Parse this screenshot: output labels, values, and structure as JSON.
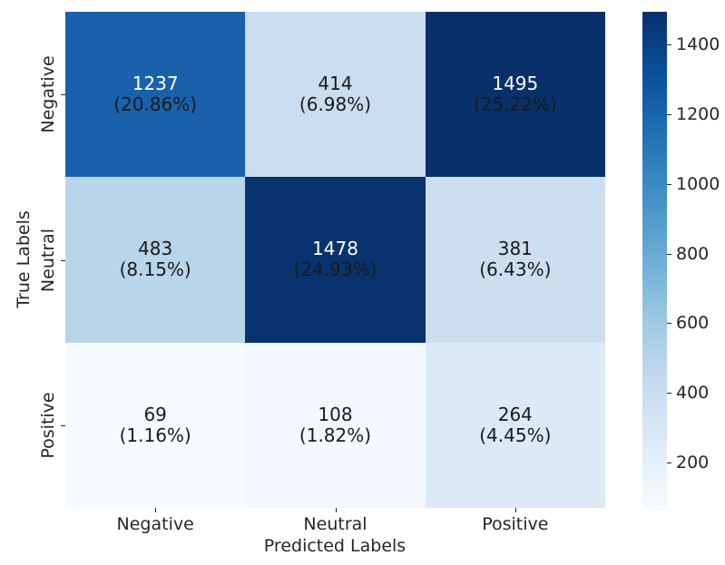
{
  "figure": {
    "background": "#ffffff",
    "text_color": "#262626"
  },
  "chart_data": {
    "type": "heatmap",
    "title": "",
    "xlabel": "Predicted Labels",
    "ylabel": "True Labels",
    "x_categories": [
      "Negative",
      "Neutral",
      "Positive"
    ],
    "y_categories": [
      "Negative",
      "Neutral",
      "Positive"
    ],
    "matrix_counts": [
      [
        1237,
        414,
        1495
      ],
      [
        483,
        1478,
        381
      ],
      [
        69,
        108,
        264
      ]
    ],
    "matrix_percent_labels": [
      [
        "(20.86%)",
        "(6.98%)",
        "(25.22%)"
      ],
      [
        "(8.15%)",
        "(24.93%)",
        "(6.43%)"
      ],
      [
        "(1.16%)",
        "(1.82%)",
        "(4.45%)"
      ]
    ],
    "cell_colors": [
      [
        "#1a61ac",
        "#c9ddf0",
        "#08306b"
      ],
      [
        "#b8d5ea",
        "#08336f",
        "#ccdff1"
      ],
      [
        "#f7fbff",
        "#f2f8fd",
        "#dce9f6"
      ]
    ],
    "count_text_colors": [
      [
        "#ffffff",
        "#1a1a1a",
        "#ffffff"
      ],
      [
        "#1a1a1a",
        "#ffffff",
        "#1a1a1a"
      ],
      [
        "#1a1a1a",
        "#1a1a1a",
        "#1a1a1a"
      ]
    ],
    "percent_text_color": "#1a1a1a",
    "colorbar": {
      "vmin": 69,
      "vmax": 1495,
      "tick_values": [
        200,
        400,
        600,
        800,
        1000,
        1200,
        1400
      ],
      "gradient_stops": [
        "#f7fbff",
        "#deebf7",
        "#c6dbef",
        "#9ecae1",
        "#6baed6",
        "#4292c6",
        "#2171b5",
        "#08519c",
        "#08306b"
      ]
    },
    "legend": null,
    "grid": false
  }
}
